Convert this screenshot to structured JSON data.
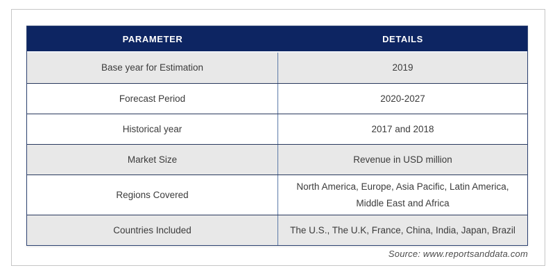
{
  "table": {
    "header": {
      "columns": [
        "PARAMETER",
        "DETAILS"
      ],
      "bg_color": "#0d2562",
      "text_color": "#ffffff"
    },
    "rows": [
      {
        "parameter": "Base year for Estimation",
        "details": "2019",
        "shaded": true
      },
      {
        "parameter": "Forecast Period",
        "details": "2020-2027",
        "shaded": false
      },
      {
        "parameter": "Historical year",
        "details": "2017 and 2018",
        "shaded": false
      },
      {
        "parameter": "Market Size",
        "details": "Revenue in USD million",
        "shaded": true
      },
      {
        "parameter": "Regions Covered",
        "details": "North America, Europe, Asia Pacific, Latin America, Middle East and Africa",
        "shaded": false
      },
      {
        "parameter": "Countries Included",
        "details": "The U.S., The  U.K, France, China, India, Japan, Brazil",
        "shaded": true
      }
    ],
    "colors": {
      "shaded_row_bg": "#e8e8e8",
      "plain_row_bg": "#ffffff",
      "cell_text": "#3b3b3b",
      "outer_border": "#2e4372",
      "row_divider": "#27375c",
      "column_divider": "#5b79a8",
      "header_underline": "#eef1f7",
      "frame_border": "#c6c6c6"
    }
  },
  "source": {
    "label": "Source: www.reportsanddata.com"
  },
  "chart_data": {
    "type": "table",
    "columns": [
      "PARAMETER",
      "DETAILS"
    ],
    "rows": [
      [
        "Base year for Estimation",
        "2019"
      ],
      [
        "Forecast Period",
        "2020-2027"
      ],
      [
        "Historical year",
        "2017 and 2018"
      ],
      [
        "Market Size",
        "Revenue in USD million"
      ],
      [
        "Regions Covered",
        "North America, Europe, Asia Pacific, Latin America, Middle East and Africa"
      ],
      [
        "Countries Included",
        "The U.S., The  U.K, France, China, India, Japan, Brazil"
      ]
    ],
    "title": "",
    "legend": "none",
    "grid": "on"
  }
}
